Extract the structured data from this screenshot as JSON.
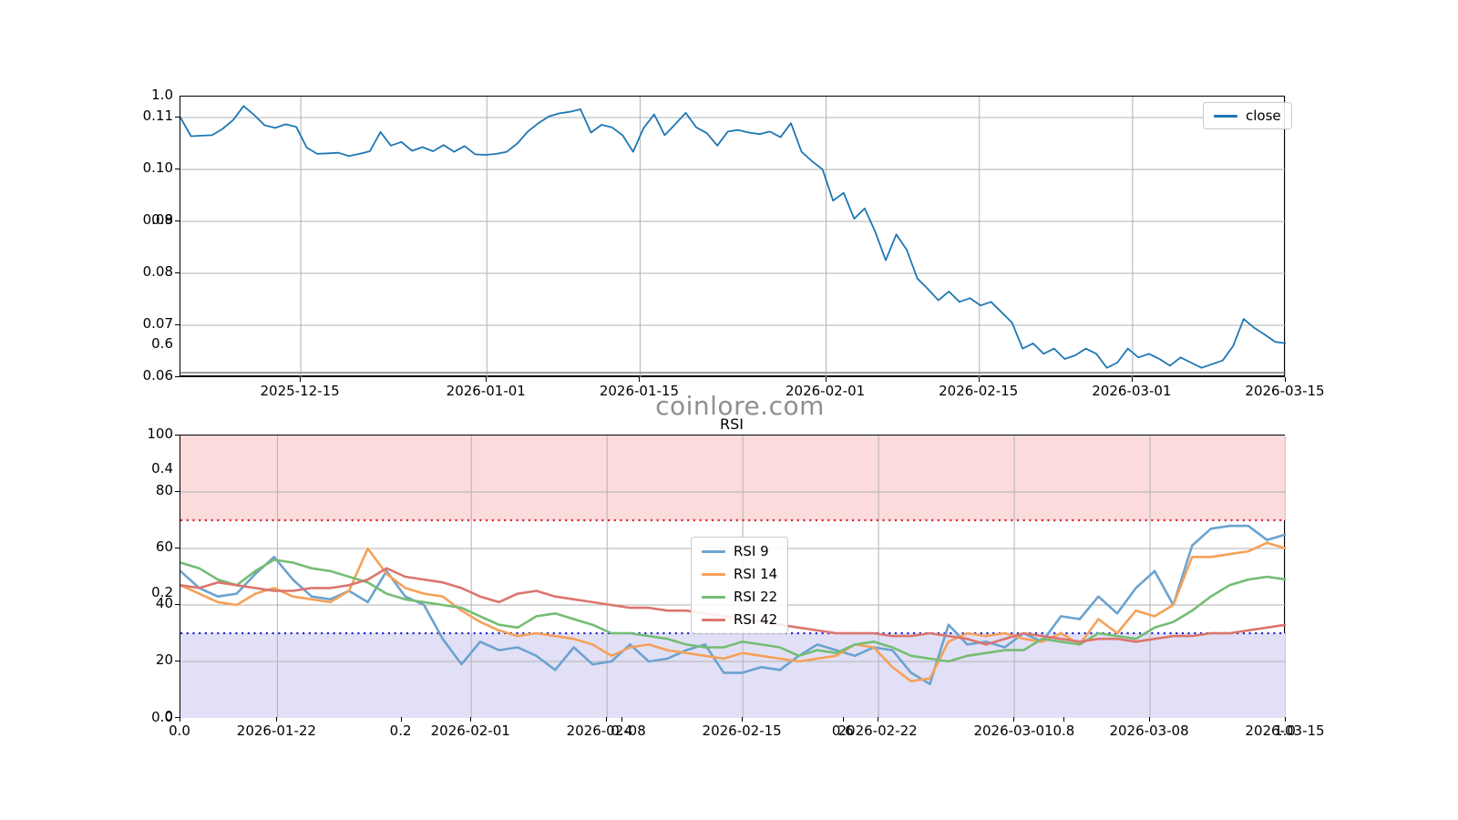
{
  "watermark": "coinlore.com",
  "figure_axis_labels": [
    {
      "label": "1.0",
      "value": 1.0
    },
    {
      "label": "0.8",
      "value": 0.8
    },
    {
      "label": "0.6",
      "value": 0.6
    },
    {
      "label": "0.4",
      "value": 0.4
    },
    {
      "label": "0.2",
      "value": 0.2
    },
    {
      "label": "0.0",
      "value": 0.0
    }
  ],
  "chart_data": [
    {
      "type": "line",
      "name": "price",
      "title": "",
      "legend_position": "upper right",
      "grid": true,
      "legend": [
        {
          "label": "close",
          "color": "#1f77b4"
        }
      ],
      "x_domain": [
        "2025-12-04",
        "2026-03-15"
      ],
      "x_ticks": [
        "2025-12-15",
        "2026-01-01",
        "2026-01-15",
        "2026-02-01",
        "2026-02-15",
        "2026-03-01",
        "2026-03-15"
      ],
      "y_ticks": [
        {
          "label": "0.11",
          "value": 0.11
        },
        {
          "label": "0.10",
          "value": 0.1
        },
        {
          "label": "0.09",
          "value": 0.09
        },
        {
          "label": "0.08",
          "value": 0.08
        },
        {
          "label": "0.07",
          "value": 0.07
        },
        {
          "label": "0.06",
          "value": 0.06
        }
      ],
      "ylim": [
        0.05982,
        0.11403
      ],
      "series": [
        {
          "name": "close",
          "color": "#1f77b4",
          "width": 1.8,
          "values": [
            0.11,
            0.1064,
            0.1065,
            0.1066,
            0.1078,
            0.1095,
            0.1122,
            0.1105,
            0.1085,
            0.108,
            0.1087,
            0.1082,
            0.1042,
            0.103,
            0.1031,
            0.1032,
            0.1026,
            0.103,
            0.1035,
            0.1072,
            0.1046,
            0.1053,
            0.1036,
            0.1043,
            0.1035,
            0.1047,
            0.1034,
            0.1045,
            0.1029,
            0.1028,
            0.103,
            0.1034,
            0.105,
            0.1073,
            0.1089,
            0.1102,
            0.1108,
            0.1111,
            0.1116,
            0.1071,
            0.1086,
            0.1081,
            0.1066,
            0.1034,
            0.108,
            0.1106,
            0.1066,
            0.1087,
            0.1109,
            0.1081,
            0.107,
            0.1046,
            0.1073,
            0.1076,
            0.1071,
            0.1068,
            0.1073,
            0.1062,
            0.1089,
            0.1034,
            0.1016,
            0.1,
            0.094,
            0.0955,
            0.0905,
            0.0925,
            0.088,
            0.0825,
            0.0875,
            0.0845,
            0.079,
            0.077,
            0.0748,
            0.0765,
            0.0745,
            0.0752,
            0.0738,
            0.0745,
            0.0725,
            0.0705,
            0.0655,
            0.0665,
            0.0645,
            0.0655,
            0.0635,
            0.0642,
            0.0655,
            0.0645,
            0.0618,
            0.0628,
            0.0655,
            0.0638,
            0.0645,
            0.0635,
            0.0622,
            0.0638,
            0.0628,
            0.0618,
            0.0625,
            0.0632,
            0.066,
            0.0712,
            0.0695,
            0.0682,
            0.0668,
            0.0665
          ]
        }
      ]
    },
    {
      "type": "line",
      "name": "rsi",
      "title": "RSI",
      "grid": true,
      "legend_position": "center",
      "legend": [
        {
          "label": "RSI 9",
          "color": "#6ba3cf"
        },
        {
          "label": "RSI 14",
          "color": "#f5a158"
        },
        {
          "label": "RSI 22",
          "color": "#74bd74"
        },
        {
          "label": "RSI 42",
          "color": "#dc756d"
        }
      ],
      "x_domain": [
        "2026-01-17",
        "2026-03-15"
      ],
      "x_ticks": [
        "2026-01-22",
        "2026-02-01",
        "2026-02-08",
        "2026-02-15",
        "2026-02-22",
        "2026-03-01",
        "2026-03-08",
        "2026-03-15"
      ],
      "x_ticks_numeric": [
        {
          "label": "0.0",
          "value": 0.0
        },
        {
          "label": "0.2",
          "value": 0.2
        },
        {
          "label": "0.4",
          "value": 0.4
        },
        {
          "label": "0.6",
          "value": 0.6
        },
        {
          "label": "0.8",
          "value": 0.8
        },
        {
          "label": "1.0",
          "value": 1.0
        }
      ],
      "y_ticks": [
        {
          "label": "100",
          "value": 100
        },
        {
          "label": "80",
          "value": 80
        },
        {
          "label": "60",
          "value": 60
        },
        {
          "label": "40",
          "value": 40
        },
        {
          "label": "20",
          "value": 20
        },
        {
          "label": "0",
          "value": 0
        }
      ],
      "ylim": [
        0,
        100
      ],
      "bands": [
        {
          "name": "overbought-band",
          "from": 70,
          "to": 100,
          "color": "#fbdbdb"
        },
        {
          "name": "oversold-band",
          "from": 0,
          "to": 30,
          "color": "#e2e0f6"
        }
      ],
      "thresholds": [
        {
          "name": "overbought-line",
          "value": 70,
          "color": "#e02438"
        },
        {
          "name": "oversold-line",
          "value": 30,
          "color": "#2727cf"
        }
      ],
      "series": [
        {
          "name": "RSI 9",
          "color": "#6ba3cf",
          "width": 2.6,
          "values": [
            52,
            46,
            43,
            44,
            51,
            57,
            49,
            43,
            42,
            45,
            41,
            52,
            43,
            40,
            28,
            19,
            27,
            24,
            25,
            22,
            17,
            25,
            19,
            20,
            26,
            20,
            21,
            24,
            26,
            16,
            16,
            18,
            17,
            22,
            26,
            24,
            22,
            25,
            24,
            16,
            12,
            33,
            26,
            27,
            25,
            30,
            27,
            36,
            35,
            43,
            37,
            46,
            52,
            40,
            61,
            67,
            68,
            68,
            63,
            65
          ]
        },
        {
          "name": "RSI 14",
          "color": "#f5a158",
          "width": 2.6,
          "values": [
            47,
            44,
            41,
            40,
            44,
            46,
            43,
            42,
            41,
            45,
            60,
            51,
            46,
            44,
            43,
            38,
            34,
            31,
            29,
            30,
            29,
            28,
            26,
            22,
            25,
            26,
            24,
            23,
            22,
            21,
            23,
            22,
            21,
            20,
            21,
            22,
            26,
            25,
            18,
            13,
            14,
            27,
            30,
            29,
            30,
            28,
            27,
            30,
            26,
            35,
            30,
            38,
            36,
            40,
            57,
            57,
            58,
            59,
            62,
            60
          ]
        },
        {
          "name": "RSI 22",
          "color": "#74bd74",
          "width": 2.6,
          "values": [
            55,
            53,
            49,
            47,
            52,
            56,
            55,
            53,
            52,
            50,
            48,
            44,
            42,
            41,
            40,
            39,
            36,
            33,
            32,
            36,
            37,
            35,
            33,
            30,
            30,
            29,
            28,
            26,
            25,
            25,
            27,
            26,
            25,
            22,
            24,
            23,
            26,
            27,
            25,
            22,
            21,
            20,
            22,
            23,
            24,
            24,
            28,
            27,
            26,
            30,
            29,
            28,
            32,
            34,
            38,
            43,
            47,
            49,
            50,
            49
          ]
        },
        {
          "name": "RSI 42",
          "color": "#dc756d",
          "width": 2.6,
          "values": [
            47,
            46,
            48,
            47,
            46,
            45,
            45,
            46,
            46,
            47,
            49,
            53,
            50,
            49,
            48,
            46,
            43,
            41,
            44,
            45,
            43,
            42,
            41,
            40,
            39,
            39,
            38,
            38,
            37,
            36,
            35,
            34,
            33,
            32,
            31,
            30,
            30,
            30,
            29,
            29,
            30,
            29,
            28,
            26,
            28,
            30,
            29,
            28,
            27,
            28,
            28,
            27,
            28,
            29,
            29,
            30,
            30,
            31,
            32,
            33
          ]
        }
      ]
    }
  ],
  "styles": {
    "grid_color": "#b2b2b2",
    "watermark_color": "#8f8f8f",
    "price_baseline_color": "#808080"
  }
}
